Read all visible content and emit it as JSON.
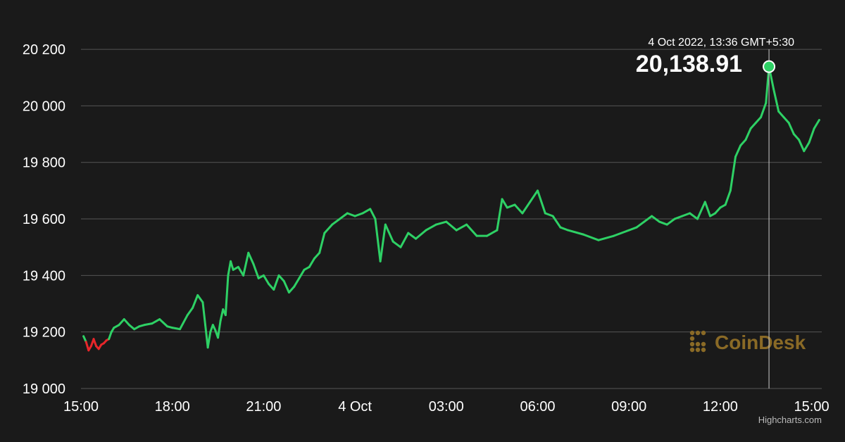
{
  "chart_data": {
    "type": "line",
    "x_axis": {
      "type": "datetime",
      "min": "2022-10-03T15:00",
      "max": "2022-10-04T15:20"
    },
    "ylim": [
      19000,
      20250
    ],
    "yticks": [
      19000,
      19200,
      19400,
      19600,
      19800,
      20000,
      20200
    ],
    "ytick_labels": [
      "19 000",
      "19 200",
      "19 400",
      "19 600",
      "19 800",
      "20 000",
      "20 200"
    ],
    "xticks": [
      "2022-10-03T15:00",
      "2022-10-03T18:00",
      "2022-10-03T21:00",
      "2022-10-04T00:00",
      "2022-10-04T03:00",
      "2022-10-04T06:00",
      "2022-10-04T09:00",
      "2022-10-04T12:00",
      "2022-10-04T15:00"
    ],
    "xtick_labels": [
      "15:00",
      "18:00",
      "21:00",
      "4 Oct",
      "03:00",
      "06:00",
      "09:00",
      "12:00",
      "15:00"
    ],
    "grid": true,
    "colors": {
      "above_open": "#2ed165",
      "below_open": "#e8262a",
      "background": "#1a1a1a",
      "grid": "#555555",
      "marker_fill": "#2ed165"
    },
    "open_value": 19180,
    "series": [
      {
        "x": [
          "2022-10-03T15:05",
          "2022-10-03T15:10",
          "2022-10-03T15:15",
          "2022-10-03T15:20",
          "2022-10-03T15:25",
          "2022-10-03T15:30",
          "2022-10-03T15:35",
          "2022-10-03T15:40",
          "2022-10-03T15:45",
          "2022-10-03T15:50",
          "2022-10-03T15:55",
          "2022-10-03T16:00",
          "2022-10-03T16:05",
          "2022-10-03T16:15",
          "2022-10-03T16:25",
          "2022-10-03T16:35",
          "2022-10-03T16:45",
          "2022-10-03T16:55",
          "2022-10-03T17:05",
          "2022-10-03T17:20",
          "2022-10-03T17:35",
          "2022-10-03T17:50",
          "2022-10-03T18:00",
          "2022-10-03T18:15",
          "2022-10-03T18:30",
          "2022-10-03T18:40",
          "2022-10-03T18:50",
          "2022-10-03T19:00",
          "2022-10-03T19:05",
          "2022-10-03T19:10",
          "2022-10-03T19:15",
          "2022-10-03T19:20",
          "2022-10-03T19:25",
          "2022-10-03T19:30",
          "2022-10-03T19:35",
          "2022-10-03T19:40",
          "2022-10-03T19:45",
          "2022-10-03T19:50",
          "2022-10-03T19:55",
          "2022-10-03T20:00",
          "2022-10-03T20:10",
          "2022-10-03T20:20",
          "2022-10-03T20:30",
          "2022-10-03T20:40",
          "2022-10-03T20:50",
          "2022-10-03T21:00",
          "2022-10-03T21:10",
          "2022-10-03T21:20",
          "2022-10-03T21:30",
          "2022-10-03T21:40",
          "2022-10-03T21:50",
          "2022-10-03T22:00",
          "2022-10-03T22:10",
          "2022-10-03T22:20",
          "2022-10-03T22:30",
          "2022-10-03T22:40",
          "2022-10-03T22:50",
          "2022-10-03T23:00",
          "2022-10-03T23:15",
          "2022-10-03T23:30",
          "2022-10-03T23:45",
          "2022-10-04T00:00",
          "2022-10-04T00:15",
          "2022-10-04T00:30",
          "2022-10-04T00:40",
          "2022-10-04T00:50",
          "2022-10-04T01:00",
          "2022-10-04T01:15",
          "2022-10-04T01:30",
          "2022-10-04T01:45",
          "2022-10-04T02:00",
          "2022-10-04T02:20",
          "2022-10-04T02:40",
          "2022-10-04T03:00",
          "2022-10-04T03:20",
          "2022-10-04T03:40",
          "2022-10-04T04:00",
          "2022-10-04T04:20",
          "2022-10-04T04:40",
          "2022-10-04T04:50",
          "2022-10-04T05:00",
          "2022-10-04T05:15",
          "2022-10-04T05:30",
          "2022-10-04T05:45",
          "2022-10-04T06:00",
          "2022-10-04T06:15",
          "2022-10-04T06:30",
          "2022-10-04T06:45",
          "2022-10-04T07:00",
          "2022-10-04T07:30",
          "2022-10-04T08:00",
          "2022-10-04T08:30",
          "2022-10-04T09:00",
          "2022-10-04T09:15",
          "2022-10-04T09:30",
          "2022-10-04T09:45",
          "2022-10-04T10:00",
          "2022-10-04T10:15",
          "2022-10-04T10:30",
          "2022-10-04T10:45",
          "2022-10-04T11:00",
          "2022-10-04T11:15",
          "2022-10-04T11:30",
          "2022-10-04T11:40",
          "2022-10-04T11:50",
          "2022-10-04T12:00",
          "2022-10-04T12:10",
          "2022-10-04T12:20",
          "2022-10-04T12:30",
          "2022-10-04T12:40",
          "2022-10-04T12:50",
          "2022-10-04T13:00",
          "2022-10-04T13:10",
          "2022-10-04T13:20",
          "2022-10-04T13:30",
          "2022-10-04T13:36",
          "2022-10-04T13:45",
          "2022-10-04T13:55",
          "2022-10-04T14:05",
          "2022-10-04T14:15",
          "2022-10-04T14:25",
          "2022-10-04T14:35",
          "2022-10-04T14:45",
          "2022-10-04T14:55",
          "2022-10-04T15:05",
          "2022-10-04T15:15"
        ],
        "y": [
          19185,
          19165,
          19135,
          19150,
          19175,
          19150,
          19140,
          19155,
          19160,
          19170,
          19175,
          19200,
          19215,
          19225,
          19245,
          19225,
          19210,
          19220,
          19225,
          19230,
          19245,
          19220,
          19215,
          19210,
          19260,
          19285,
          19330,
          19305,
          19225,
          19145,
          19200,
          19225,
          19205,
          19180,
          19240,
          19280,
          19260,
          19400,
          19450,
          19420,
          19430,
          19400,
          19480,
          19440,
          19390,
          19400,
          19370,
          19350,
          19400,
          19380,
          19340,
          19360,
          19390,
          19420,
          19430,
          19460,
          19480,
          19550,
          19580,
          19600,
          19620,
          19610,
          19620,
          19635,
          19600,
          19450,
          19580,
          19520,
          19500,
          19550,
          19530,
          19560,
          19580,
          19590,
          19560,
          19580,
          19540,
          19540,
          19560,
          19670,
          19640,
          19650,
          19620,
          19660,
          19700,
          19620,
          19610,
          19570,
          19560,
          19545,
          19525,
          19540,
          19560,
          19570,
          19590,
          19610,
          19590,
          19580,
          19600,
          19610,
          19620,
          19600,
          19660,
          19610,
          19620,
          19640,
          19650,
          19700,
          19820,
          19860,
          19880,
          19920,
          19940,
          19960,
          20010,
          20138.91,
          20060,
          19980,
          19960,
          19940,
          19900,
          19880,
          19840,
          19870,
          19920,
          19950
        ],
        "highlight": {
          "x": "2022-10-04T13:36",
          "y": 20138.91
        }
      }
    ],
    "tooltip": {
      "date": "4 Oct 2022, 13:36 GMT+5:30",
      "value": "20,138.91"
    },
    "watermark": "CoinDesk",
    "credits": "Highcharts.com"
  }
}
